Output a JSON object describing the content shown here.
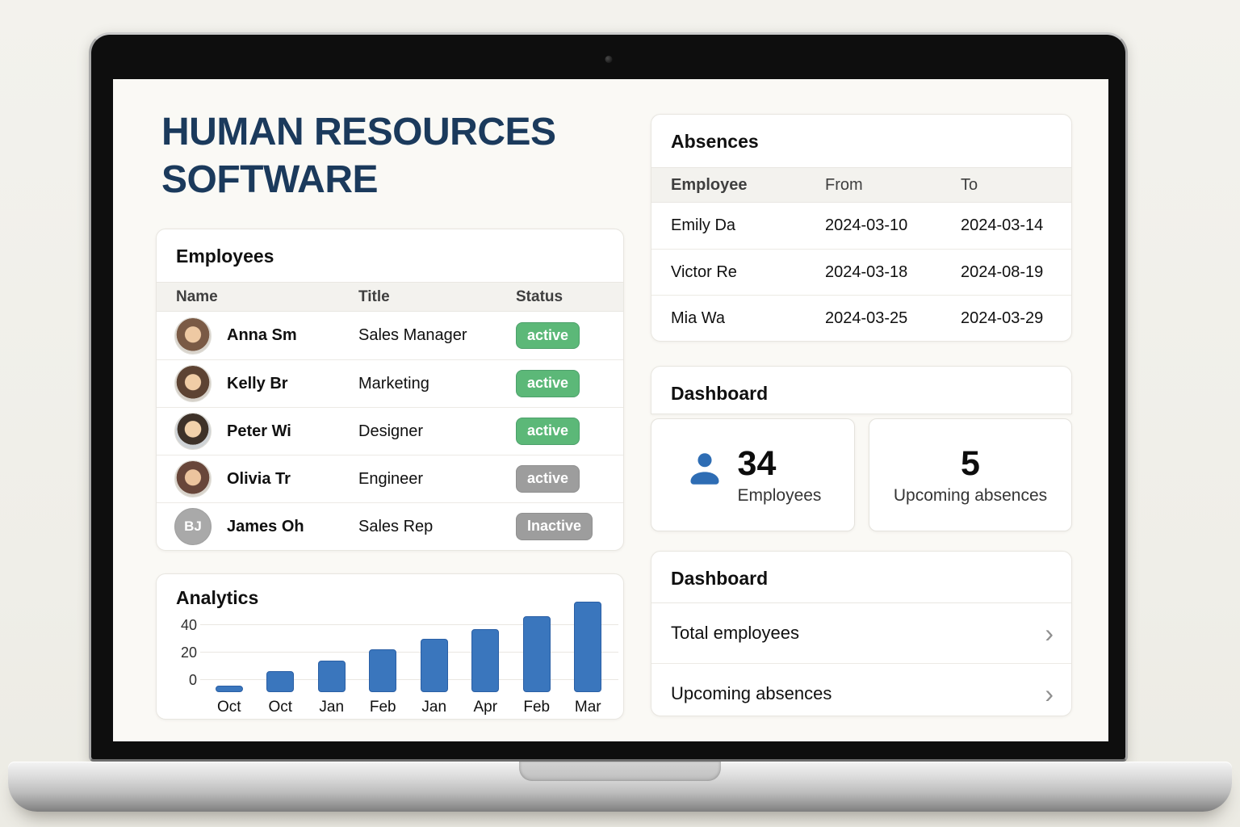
{
  "page_title": "HUMAN RESOURCES SOFTWARE",
  "employees_panel": {
    "title": "Employees",
    "columns": [
      "Name",
      "Title",
      "Status"
    ],
    "rows": [
      {
        "name": "Anna Sm",
        "title": "Sales Manager",
        "status": "active",
        "status_variant": "green",
        "avatar_variant": "photo-1"
      },
      {
        "name": "Kelly Br",
        "title": "Marketing",
        "status": "active",
        "status_variant": "green",
        "avatar_variant": "photo-2"
      },
      {
        "name": "Peter Wi",
        "title": "Designer",
        "status": "active",
        "status_variant": "green",
        "avatar_variant": "photo-3"
      },
      {
        "name": "Olivia Tr",
        "title": "Engineer",
        "status": "active",
        "status_variant": "gray",
        "avatar_variant": "photo-4"
      },
      {
        "name": "James Oh",
        "title": "Sales Rep",
        "status": "Inactive",
        "status_variant": "gray",
        "avatar_variant": "initials",
        "initials": "BJ"
      }
    ]
  },
  "chart_data": {
    "type": "bar",
    "title": "Analytics",
    "categories": [
      "Oct",
      "Oct",
      "Jan",
      "Feb",
      "Jan",
      "Apr",
      "Feb",
      "Mar"
    ],
    "values": [
      -4,
      6,
      14,
      22,
      30,
      37,
      46,
      57
    ],
    "yticks": [
      40,
      20,
      0
    ],
    "ylim": [
      -9,
      58
    ],
    "grid": true,
    "legend": false,
    "xlabel": "",
    "ylabel": "",
    "bar_color": "#3a76bd",
    "bar_border_color": "#2a5fa5"
  },
  "absences_panel": {
    "title": "Absences",
    "columns": [
      "Employee",
      "From",
      "To"
    ],
    "rows": [
      {
        "employee": "Emily Da",
        "from": "2024-03-10",
        "to": "2024-03-14"
      },
      {
        "employee": "Victor Re",
        "from": "2024-03-18",
        "to": "2024-08-19"
      },
      {
        "employee": "Mia Wa",
        "from": "2024-03-25",
        "to": "2024-03-29"
      }
    ]
  },
  "dashboard_stats_panel": {
    "title": "Dashboard",
    "stats": [
      {
        "value": "34",
        "label": "Employees",
        "icon": "person-icon"
      },
      {
        "value": "5",
        "label": "Upcoming absences"
      }
    ]
  },
  "dashboard_links_panel": {
    "title": "Dashboard",
    "items": [
      {
        "label": "Total employees"
      },
      {
        "label": "Upcoming absences"
      }
    ],
    "chevron_glyph": "›"
  },
  "colors": {
    "accent_navy": "#1b3a5c",
    "badge_green": "#5cb878",
    "badge_gray": "#9d9d9d",
    "bar_blue": "#3a76bd",
    "icon_blue": "#2e6db4",
    "screen_bg": "#faf9f5",
    "page_bg": "#f0efe9"
  }
}
